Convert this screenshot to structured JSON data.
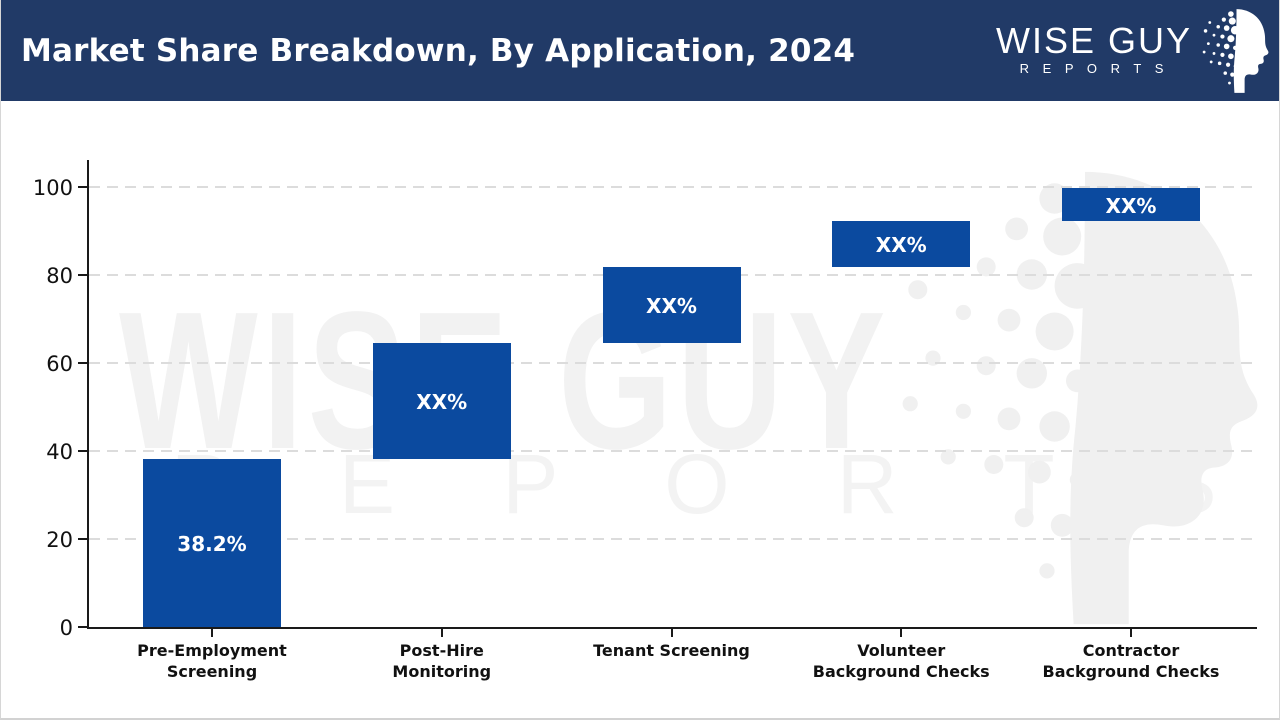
{
  "header": {
    "title": "Market Share Breakdown, By Application, 2024",
    "brand": {
      "name_line1": "WISE GUY",
      "name_line2": "R E P O R T S"
    }
  },
  "watermark": {
    "line1": "WISE GUY",
    "line2": "R E P O R T S"
  },
  "colors": {
    "header_background": "#213a67",
    "bar_blue": "#0b4a9f",
    "bar_label_white": "#ffffff",
    "gridline_gray": "#dcdcdc",
    "watermark_gray": "#f1f1f1"
  },
  "chart_data": {
    "type": "bar",
    "subtype": "waterfall",
    "title": "Market Share Breakdown, By Application, 2024",
    "categories": [
      "Pre-Employment\nScreening",
      "Post-Hire\nMonitoring",
      "Tenant Screening",
      "Volunteer\nBackground Checks",
      "Contractor\nBackground Checks"
    ],
    "segments": [
      {
        "start": 0,
        "end": 38.2,
        "label": "38.2%"
      },
      {
        "start": 38.2,
        "end": 64.5,
        "label": "XX%"
      },
      {
        "start": 64.5,
        "end": 81.7,
        "label": "XX%"
      },
      {
        "start": 81.7,
        "end": 92.1,
        "label": "XX%"
      },
      {
        "start": 92.1,
        "end": 99.6,
        "label": "XX%"
      }
    ],
    "xlabel": "",
    "ylabel": "",
    "ylim": [
      0,
      100
    ],
    "yticks": [
      0,
      20,
      40,
      60,
      80,
      100
    ],
    "grid": "horizontal-dashed",
    "legend": "none",
    "bar_color": "#0b4a9f",
    "value_label_color": "#ffffff"
  }
}
